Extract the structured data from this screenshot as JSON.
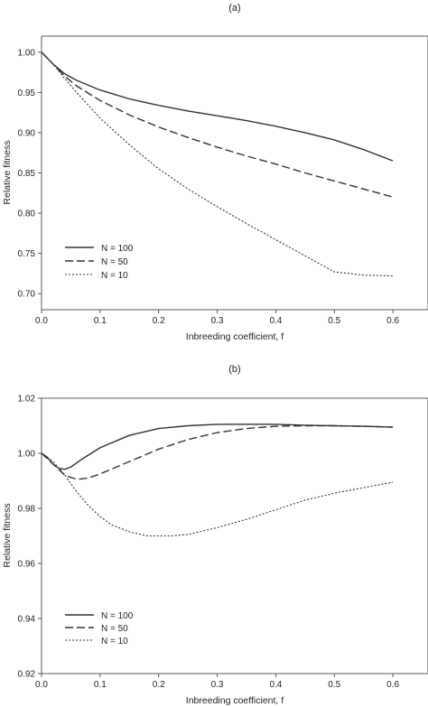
{
  "chart_data": [
    {
      "panel_label": "(a)",
      "type": "line",
      "xlabel": "Inbreeding coefficient, f",
      "ylabel": "Relative fitness",
      "xlim": [
        0,
        0.66
      ],
      "ylim": [
        0.68,
        1.02
      ],
      "xticks": [
        0.0,
        0.1,
        0.2,
        0.3,
        0.4,
        0.5,
        0.6
      ],
      "xtick_labels": [
        "0.0",
        "0.1",
        "0.2",
        "0.3",
        "0.4",
        "0.5",
        "0.6"
      ],
      "yticks": [
        0.7,
        0.75,
        0.8,
        0.85,
        0.9,
        0.95,
        1.0
      ],
      "ytick_labels": [
        "0.70",
        "0.75",
        "0.80",
        "0.85",
        "0.90",
        "0.95",
        "1.00"
      ],
      "legend": "lower-left",
      "series": [
        {
          "name": "N = 100",
          "style": "solid",
          "x": [
            0,
            0.02,
            0.04,
            0.06,
            0.1,
            0.15,
            0.2,
            0.25,
            0.3,
            0.35,
            0.4,
            0.45,
            0.5,
            0.55,
            0.6
          ],
          "y": [
            1.0,
            0.985,
            0.973,
            0.965,
            0.953,
            0.942,
            0.934,
            0.927,
            0.921,
            0.915,
            0.908,
            0.9,
            0.891,
            0.879,
            0.865
          ]
        },
        {
          "name": "N = 50",
          "style": "dashed",
          "x": [
            0,
            0.02,
            0.04,
            0.06,
            0.1,
            0.15,
            0.2,
            0.25,
            0.3,
            0.35,
            0.4,
            0.45,
            0.5,
            0.55,
            0.6
          ],
          "y": [
            1.0,
            0.985,
            0.97,
            0.958,
            0.94,
            0.922,
            0.907,
            0.894,
            0.882,
            0.871,
            0.861,
            0.85,
            0.84,
            0.83,
            0.82
          ]
        },
        {
          "name": "N = 10",
          "style": "dotted",
          "x": [
            0,
            0.02,
            0.04,
            0.06,
            0.1,
            0.15,
            0.2,
            0.25,
            0.3,
            0.35,
            0.4,
            0.45,
            0.5,
            0.55,
            0.6
          ],
          "y": [
            1.0,
            0.985,
            0.967,
            0.95,
            0.918,
            0.885,
            0.855,
            0.83,
            0.808,
            0.787,
            0.767,
            0.747,
            0.727,
            0.723,
            0.722
          ]
        }
      ]
    },
    {
      "panel_label": "(b)",
      "type": "line",
      "xlabel": "Inbreeding coefficient, f",
      "ylabel": "Relative fitness",
      "xlim": [
        0,
        0.66
      ],
      "ylim": [
        0.92,
        1.02
      ],
      "xticks": [
        0.0,
        0.1,
        0.2,
        0.3,
        0.4,
        0.5,
        0.6
      ],
      "xtick_labels": [
        "0.0",
        "0.1",
        "0.2",
        "0.3",
        "0.4",
        "0.5",
        "0.6"
      ],
      "yticks": [
        0.92,
        0.94,
        0.96,
        0.98,
        1.0,
        1.02
      ],
      "ytick_labels": [
        "0.92",
        "0.94",
        "0.96",
        "0.98",
        "1.00",
        "1.02"
      ],
      "legend": "lower-left",
      "series": [
        {
          "name": "N = 100",
          "style": "solid",
          "x": [
            0,
            0.01,
            0.02,
            0.03,
            0.04,
            0.05,
            0.07,
            0.1,
            0.15,
            0.2,
            0.25,
            0.3,
            0.35,
            0.4,
            0.45,
            0.5,
            0.55,
            0.6
          ],
          "y": [
            1.0,
            0.9985,
            0.996,
            0.9945,
            0.9942,
            0.995,
            0.998,
            1.002,
            1.0065,
            1.009,
            1.01,
            1.0105,
            1.0105,
            1.0105,
            1.0102,
            1.01,
            1.0098,
            1.0095
          ]
        },
        {
          "name": "N = 50",
          "style": "dashed",
          "x": [
            0,
            0.02,
            0.04,
            0.06,
            0.08,
            0.1,
            0.15,
            0.2,
            0.25,
            0.3,
            0.35,
            0.4,
            0.45,
            0.5,
            0.55,
            0.6
          ],
          "y": [
            1.0,
            0.996,
            0.992,
            0.9905,
            0.991,
            0.9925,
            0.997,
            1.0015,
            1.005,
            1.0075,
            1.009,
            1.0098,
            1.01,
            1.01,
            1.0098,
            1.0095
          ]
        },
        {
          "name": "N = 10",
          "style": "dotted",
          "x": [
            0,
            0.02,
            0.04,
            0.06,
            0.08,
            0.1,
            0.12,
            0.15,
            0.18,
            0.2,
            0.22,
            0.25,
            0.3,
            0.35,
            0.4,
            0.45,
            0.5,
            0.55,
            0.6
          ],
          "y": [
            1.0,
            0.997,
            0.992,
            0.986,
            0.981,
            0.977,
            0.974,
            0.9715,
            0.97,
            0.97,
            0.97,
            0.9705,
            0.973,
            0.976,
            0.9795,
            0.983,
            0.9855,
            0.9875,
            0.9895
          ]
        }
      ]
    }
  ]
}
